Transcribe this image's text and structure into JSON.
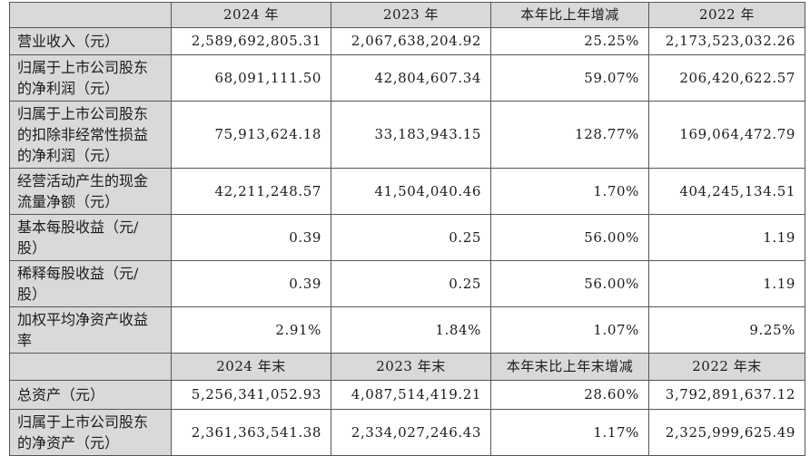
{
  "document": {
    "type": "financial-summary-table",
    "colors": {
      "header_bg": "#d9d9d9",
      "label_bg": "#d9d9d9",
      "cell_bg": "#ffffff",
      "border": "#565656",
      "text": "#1c1c1c"
    },
    "annual_section": {
      "headers": [
        "",
        "2024 年",
        "2023 年",
        "本年比上年增减",
        "2022 年"
      ],
      "rows": [
        {
          "label": "营业收入（元）",
          "values": [
            "2,589,692,805.31",
            "2,067,638,204.92",
            "25.25%",
            "2,173,523,032.26"
          ]
        },
        {
          "label": "归属于上市公司股东的净利润（元）",
          "values": [
            "68,091,111.50",
            "42,804,607.34",
            "59.07%",
            "206,420,622.57"
          ]
        },
        {
          "label": "归属于上市公司股东的扣除非经常性损益的净利润（元）",
          "values": [
            "75,913,624.18",
            "33,183,943.15",
            "128.77%",
            "169,064,472.79"
          ]
        },
        {
          "label": "经营活动产生的现金流量净额（元）",
          "values": [
            "42,211,248.57",
            "41,504,040.46",
            "1.70%",
            "404,245,134.51"
          ]
        },
        {
          "label": "基本每股收益（元/股）",
          "values": [
            "0.39",
            "0.25",
            "56.00%",
            "1.19"
          ]
        },
        {
          "label": "稀释每股收益（元/股）",
          "values": [
            "0.39",
            "0.25",
            "56.00%",
            "1.19"
          ]
        },
        {
          "label": "加权平均净资产收益率",
          "values": [
            "2.91%",
            "1.84%",
            "1.07%",
            "9.25%"
          ]
        }
      ]
    },
    "yearend_section": {
      "headers": [
        "",
        "2024 年末",
        "2023 年末",
        "本年末比上年末增减",
        "2022 年末"
      ],
      "rows": [
        {
          "label": "总资产（元）",
          "values": [
            "5,256,341,052.93",
            "4,087,514,419.21",
            "28.60%",
            "3,792,891,637.12"
          ]
        },
        {
          "label": "归属于上市公司股东的净资产（元）",
          "values": [
            "2,361,363,541.38",
            "2,334,027,246.43",
            "1.17%",
            "2,325,999,625.49"
          ]
        }
      ]
    }
  }
}
